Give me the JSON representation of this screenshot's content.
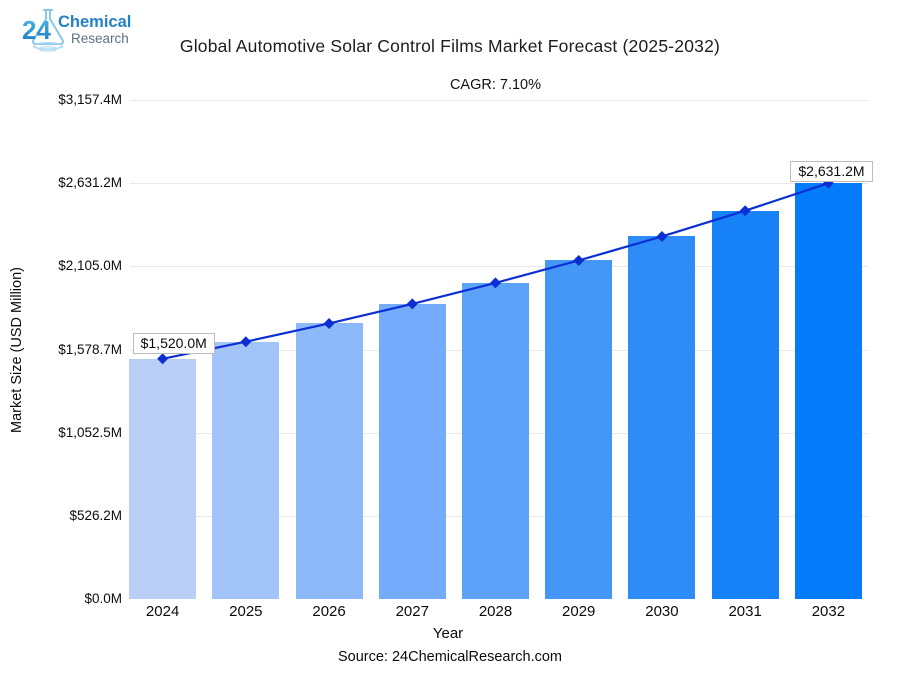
{
  "logo": {
    "number": "24",
    "name_top": "Chemical",
    "name_bottom": "Research"
  },
  "header": {
    "title": "Global Automotive Solar Control Films Market Forecast (2025-2032)",
    "subtitle": "CAGR: 7.10%"
  },
  "chart_data": {
    "type": "bar",
    "overlay": "line-with-diamond-markers",
    "title": "Global Automotive Solar Control Films Market Forecast (2025-2032)",
    "subtitle": "CAGR: 7.10%",
    "xlabel": "Year",
    "ylabel": "Market Size (USD Million)",
    "categories": [
      "2024",
      "2025",
      "2026",
      "2027",
      "2028",
      "2029",
      "2030",
      "2031",
      "2032"
    ],
    "values": [
      1520.0,
      1627.9,
      1743.5,
      1867.3,
      2000.0,
      2142.0,
      2294.0,
      2456.9,
      2631.2
    ],
    "ylim": [
      0,
      3157.4
    ],
    "yticks": [
      0,
      526.2,
      1052.5,
      1578.7,
      2105.0,
      2631.2,
      3157.4
    ],
    "ytick_labels": [
      "$0.0M",
      "$526.2M",
      "$1,052.5M",
      "$1,578.7M",
      "$2,105.0M",
      "$2,631.2M",
      "$3,157.4M"
    ],
    "grid": true,
    "legend": false,
    "bar_colors": [
      "#b9cff5",
      "#a3c4f9",
      "#8db9fa",
      "#74acfb",
      "#5da2f9",
      "#4597f7",
      "#2e8cf9",
      "#1782f8",
      "#047bf9"
    ],
    "line_color": "#0c2fd4",
    "annotations": [
      {
        "category": "2024",
        "text": "$1,520.0M"
      },
      {
        "category": "2032",
        "text": "$2,631.2M"
      }
    ]
  },
  "footer": {
    "source": "Source: 24ChemicalResearch.com"
  }
}
